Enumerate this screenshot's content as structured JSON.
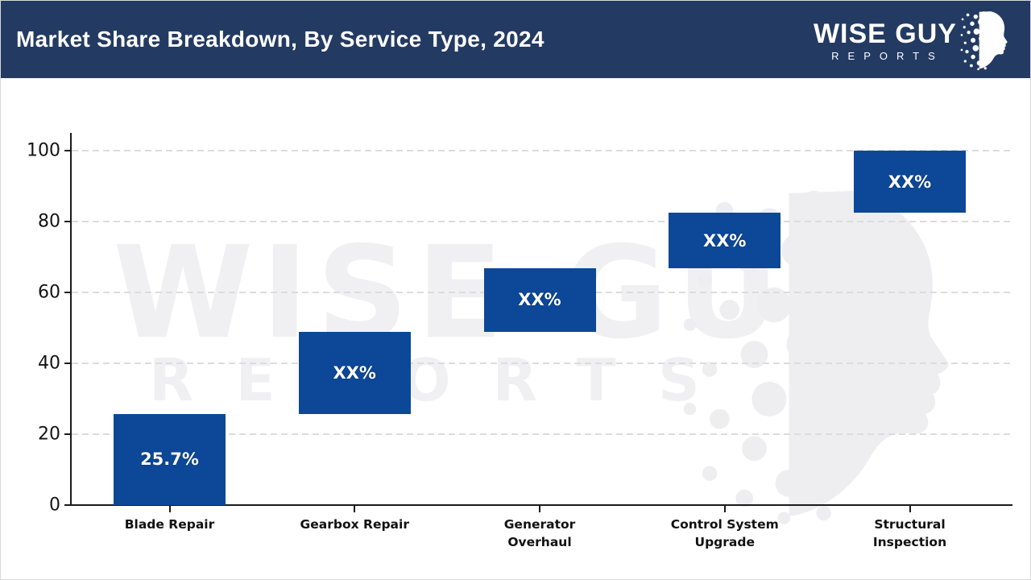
{
  "header": {
    "title": "Market Share Breakdown, By Service Type, 2024",
    "bg_color": "#233a62",
    "logo": {
      "line1": "WISE GUY",
      "line2": "REPORTS"
    }
  },
  "watermark": {
    "line1": "WISE GUY",
    "line2": "REPORTS"
  },
  "chart_data": {
    "type": "bar",
    "subtype": "waterfall-range-bars",
    "title": "Market Share Breakdown, By Service Type, 2024",
    "categories": [
      "Blade Repair",
      "Gearbox Repair",
      "Generator Overhaul",
      "Control System Upgrade",
      "Structural Inspection"
    ],
    "bars": [
      {
        "category": "Blade Repair",
        "start": 0,
        "end": 25.7,
        "label": "25.7%"
      },
      {
        "category": "Gearbox Repair",
        "start": 25.7,
        "end": 48.9,
        "label": "XX%"
      },
      {
        "category": "Generator Overhaul",
        "start": 48.9,
        "end": 66.9,
        "label": "XX%"
      },
      {
        "category": "Control System Upgrade",
        "start": 66.9,
        "end": 82.4,
        "label": "XX%"
      },
      {
        "category": "Structural Inspection",
        "start": 82.4,
        "end": 100,
        "label": "XX%"
      }
    ],
    "bar_color": "#0d4898",
    "label_color": "#ffffff",
    "yticks": [
      0,
      20,
      40,
      60,
      80,
      100
    ],
    "ylim": [
      0,
      105
    ],
    "xlabel": "",
    "ylabel": "",
    "grid": "horizontal-dashed",
    "grid_color": "#dcdcdc",
    "axis_color": "#1a1a1a",
    "legend": "none"
  }
}
